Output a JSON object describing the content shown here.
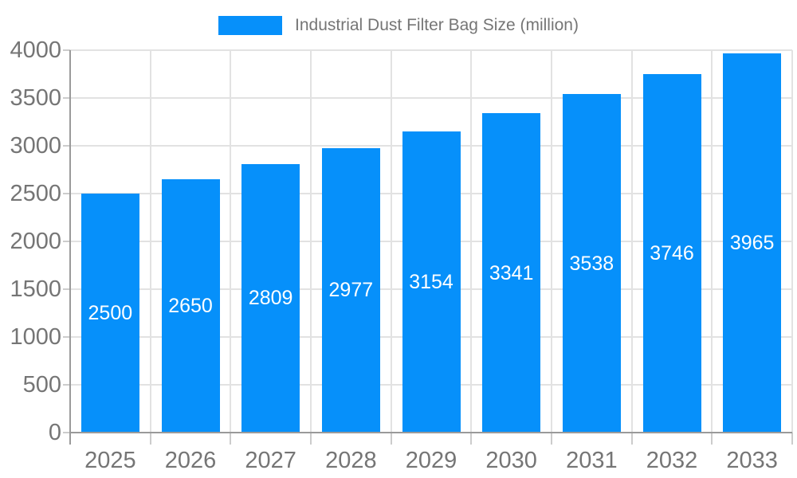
{
  "chart_data": {
    "type": "bar",
    "title": "Industrial Dust Filter Bag Size (million)",
    "legend": [
      "Industrial Dust Filter Bag Size (million)"
    ],
    "legend_position": "top",
    "categories": [
      "2025",
      "2026",
      "2027",
      "2028",
      "2029",
      "2030",
      "2031",
      "2032",
      "2033"
    ],
    "values": [
      2500,
      2650,
      2809,
      2977,
      3154,
      3341,
      3538,
      3746,
      3965
    ],
    "value_labels_shown": true,
    "xlabel": "",
    "ylabel": "",
    "ylim": [
      0,
      4000
    ],
    "ytick_step": 500,
    "yticks": [
      0,
      500,
      1000,
      1500,
      2000,
      2500,
      3000,
      3500,
      4000
    ],
    "grid": true,
    "colors": {
      "bar": "#0690fa",
      "axis_label": "#757575",
      "legend_label": "#757575",
      "grid_line": "#e2e2e2",
      "axis_line": "#9a9a9a",
      "tick": "#cccccc",
      "value_label": "#ffffff",
      "background": "#ffffff"
    }
  }
}
